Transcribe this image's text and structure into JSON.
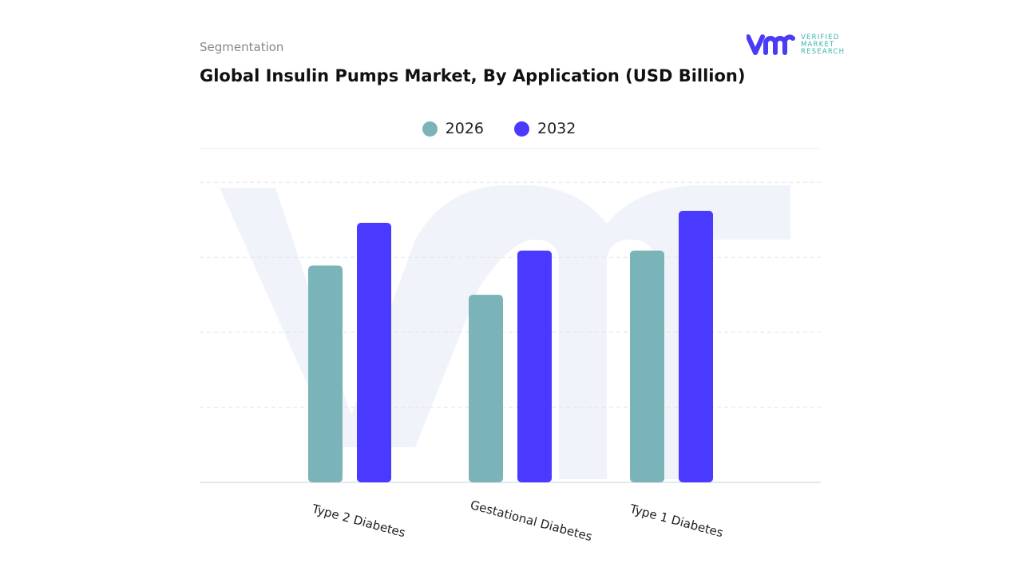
{
  "header": {
    "section": "Segmentation",
    "title": "Global Insulin Pumps Market, By Application (USD Billion)"
  },
  "logo": {
    "text": [
      "VERIFIED",
      "MARKET",
      "RESEARCH"
    ],
    "brand_color": "#4a3cf5",
    "text_color": "#3bb3ad"
  },
  "chart_data": {
    "type": "bar",
    "title": "Global Insulin Pumps Market, By Application (USD Billion)",
    "categories": [
      "Type 2 Diabetes",
      "Gestational Diabetes",
      "Type 1 Diabetes"
    ],
    "series": [
      {
        "name": "2026",
        "color": "#7ab4b8",
        "values": [
          2.89,
          2.5,
          3.09
        ]
      },
      {
        "name": "2032",
        "color": "#4a3aff",
        "values": [
          3.46,
          3.09,
          3.62
        ]
      }
    ],
    "ylim": [
      0,
      4.45
    ],
    "grid": true,
    "legend_position": "top-center",
    "xlabel": "",
    "ylabel": ""
  }
}
